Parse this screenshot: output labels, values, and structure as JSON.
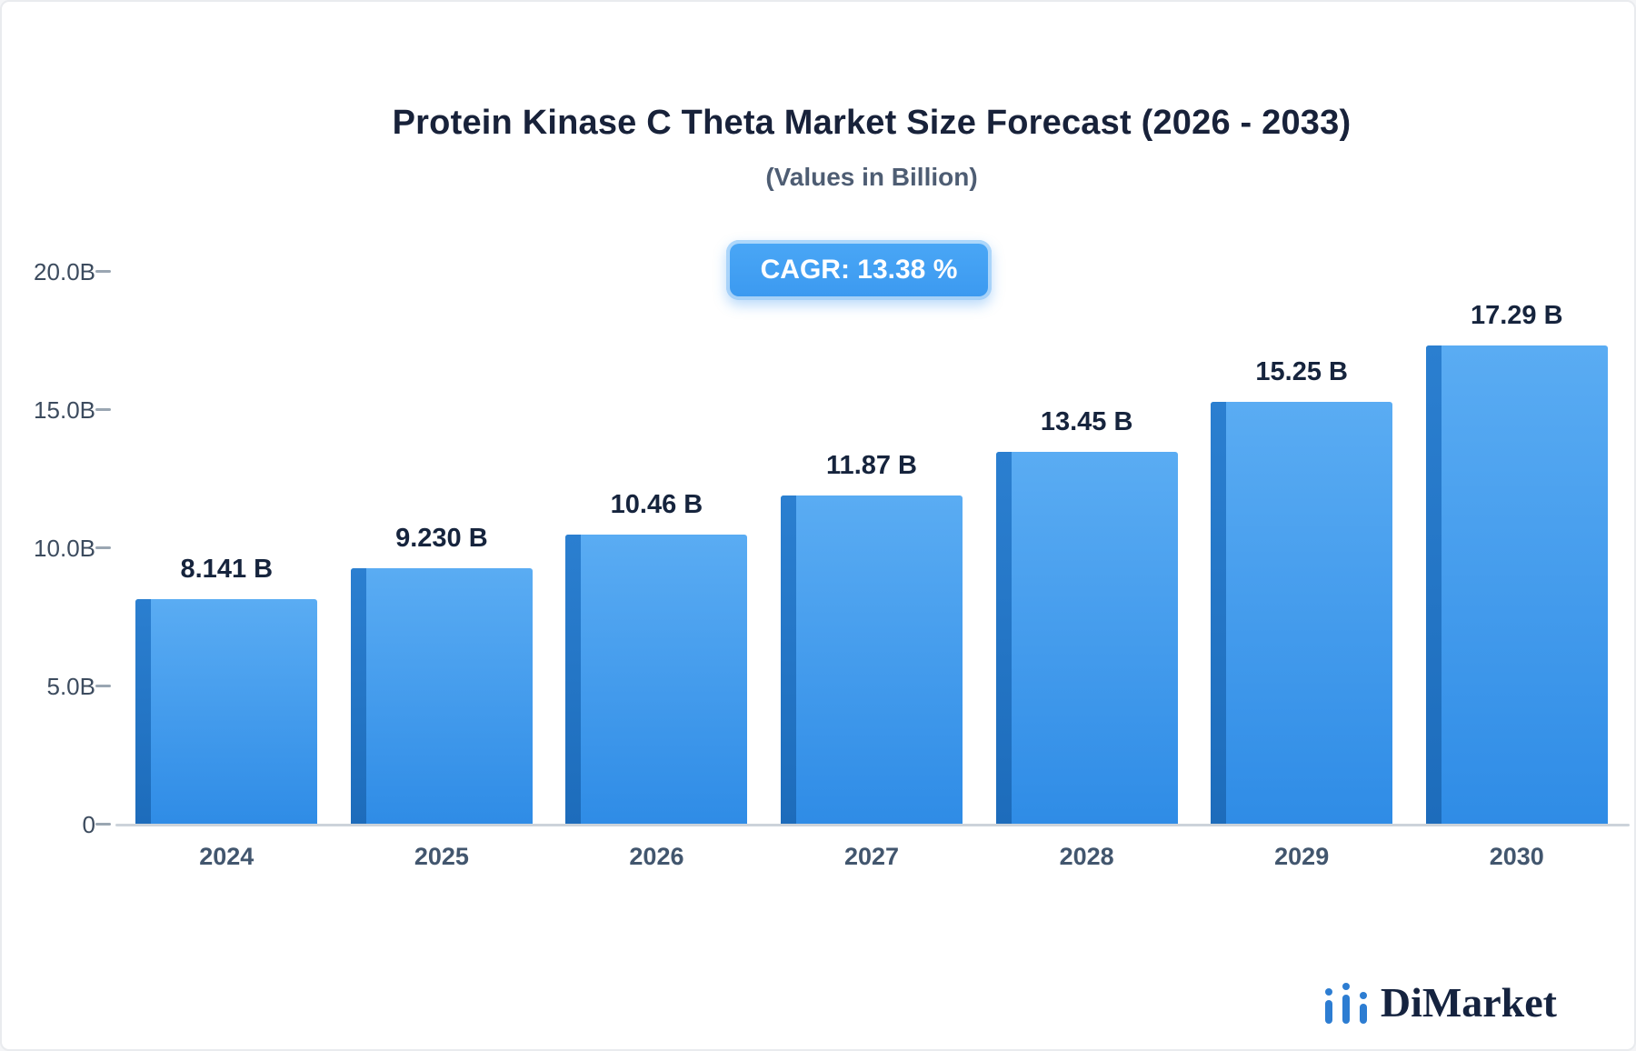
{
  "header": {
    "title": "Protein Kinase C Theta Market Size Forecast (2026 - 2033)",
    "subtitle": "(Values in Billion)"
  },
  "chart_data": {
    "type": "bar",
    "title": "Protein Kinase C Theta Market Size Forecast (2026 - 2033)",
    "subtitle": "(Values in Billion)",
    "cagr_label": "CAGR: 13.38 %",
    "categories": [
      "2024",
      "2025",
      "2026",
      "2027",
      "2028",
      "2029",
      "2030"
    ],
    "values": [
      8.141,
      9.23,
      10.46,
      11.87,
      13.45,
      15.25,
      17.29
    ],
    "value_labels": [
      "8.141 B",
      "9.230 B",
      "10.46 B",
      "11.87 B",
      "13.45 B",
      "15.25 B",
      "17.29 B"
    ],
    "xlabel": "",
    "ylabel": "",
    "ylim": [
      0,
      20
    ],
    "yticks": [
      {
        "label": "20.0B",
        "value": 20
      },
      {
        "label": "15.0B",
        "value": 15
      },
      {
        "label": "10.0B",
        "value": 10
      },
      {
        "label": "5.0B",
        "value": 5
      },
      {
        "label": "0",
        "value": 0
      }
    ],
    "grid": false,
    "legend": false,
    "colors": {
      "bar_face_top": "#5aacf3",
      "bar_face_bottom": "#2f8ce6",
      "bar_edge": "#1d6cbb",
      "badge_blue": "#3b99f0",
      "title_text": "#18223a",
      "subtitle_text": "#4e5d73",
      "axis_text": "#3c4b5e",
      "axis_line": "#ccd3da"
    }
  },
  "brand": {
    "name": "DiMarket",
    "icon": "dimarket-bars-icon",
    "color": "#2d7dd2"
  }
}
